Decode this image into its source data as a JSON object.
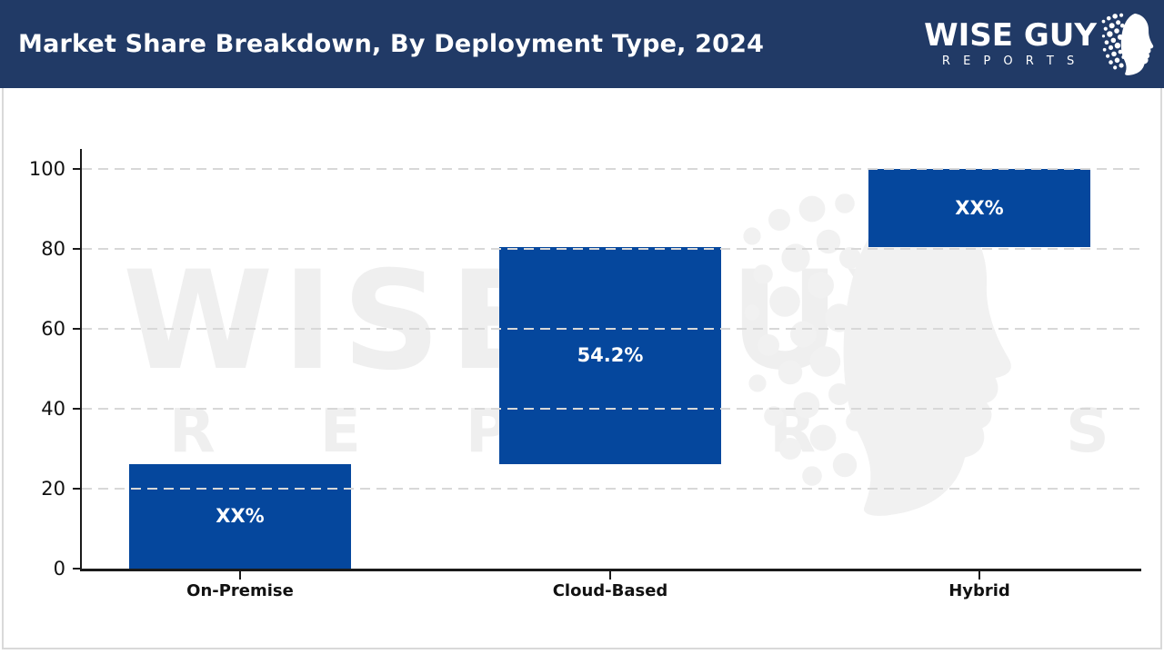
{
  "header": {
    "title": "Market Share Breakdown, By Deployment Type, 2024",
    "logo": {
      "name": "WISE GUY",
      "tagline": "R E P O R T S"
    }
  },
  "watermark": {
    "name": "WISE GUY",
    "tagline": "R E P O R T S"
  },
  "chart_data": {
    "type": "bar",
    "subtype": "floating-waterfall",
    "title": "Market Share Breakdown, By Deployment Type, 2024",
    "categories": [
      "On-Premise",
      "Cloud-Based",
      "Hybrid"
    ],
    "segments": [
      {
        "category": "On-Premise",
        "start": 0,
        "end": 26.2,
        "label": "XX%"
      },
      {
        "category": "Cloud-Based",
        "start": 26.2,
        "end": 80.4,
        "label": "54.2%"
      },
      {
        "category": "Hybrid",
        "start": 80.4,
        "end": 100,
        "label": "XX%"
      }
    ],
    "xlabel": "",
    "ylabel": "",
    "ylim": [
      0,
      100
    ],
    "yticks": [
      0,
      20,
      40,
      60,
      80,
      100
    ],
    "grid": {
      "horizontal": true,
      "style": "dashed",
      "color": "#d8d8d8"
    },
    "legend": "none",
    "colors": {
      "bar": "#05479D",
      "bar_label": "#ffffff",
      "axis": "#1a1a1a",
      "tick_label": "#111111",
      "header_bg": "#213A66",
      "watermark": "#efefef"
    }
  }
}
